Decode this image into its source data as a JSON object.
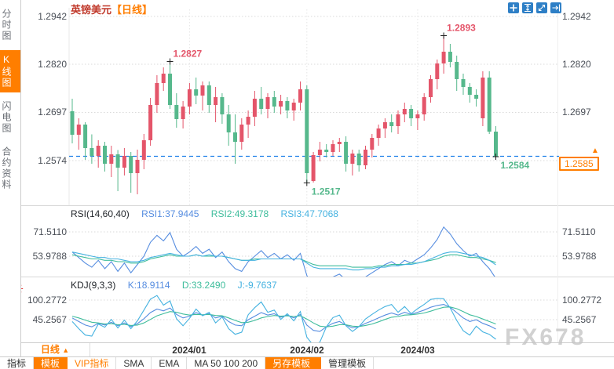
{
  "colors": {
    "accent": "#ff7e00",
    "up": "#e4556a",
    "down": "#56b88c",
    "line_blue": "#568de0",
    "line_green": "#3fbd9c",
    "line_cyan": "#45b2e0",
    "dashed_blue": "#1e80e8",
    "icon_blue": "#2e7fc6",
    "title_red": "#c0392b",
    "watermark": "#c6c6c6"
  },
  "sidebar": {
    "items": [
      {
        "label": "分时图",
        "active": false
      },
      {
        "label": "K线图",
        "active": true
      },
      {
        "label": "闪电图",
        "active": false
      },
      {
        "label": "合约资料",
        "active": false
      }
    ]
  },
  "header": {
    "symbol": "英镑美元",
    "period_tag": "【日线】",
    "icons": [
      "pan-icon",
      "fit-vertical-icon",
      "fit-chart-icon",
      "shift-right-icon"
    ]
  },
  "price_chart": {
    "axis_left": [
      "1.2942",
      "1.2820",
      "1.2697",
      "1.2574"
    ],
    "axis_right": [
      "1.2942",
      "1.2820",
      "1.2697"
    ],
    "current_price_label": "1.2585",
    "tag_arrow_glyph": "▲"
  },
  "rsi": {
    "title": "RSI(14,60,40)",
    "series_labels": [
      "RSI1:37.9445",
      "RSI2:49.3178",
      "RSI3:47.7068"
    ],
    "axis": [
      "71.5110",
      "53.9788"
    ]
  },
  "kdj": {
    "title": "KDJ(9,3,3)",
    "series_labels": [
      "K:18.9114",
      "D:33.2490",
      "J:-9.7637"
    ],
    "axis": [
      "100.2772",
      "45.2567"
    ]
  },
  "x_axis": {
    "period_label": "日线",
    "dropdown_arrow": "▲",
    "dates": [
      "2024/01",
      "2024/02",
      "2024/03"
    ]
  },
  "watermark": "FX678",
  "bottom_toolbar": {
    "items": [
      {
        "label": "指标",
        "style": "plain"
      },
      {
        "label": "模板",
        "style": "orange"
      },
      {
        "label": "VIP指标",
        "style": "orange-text"
      },
      {
        "label": "SMA",
        "style": "plain"
      },
      {
        "label": "EMA",
        "style": "plain"
      },
      {
        "label": "MA 50 100 200",
        "style": "plain"
      },
      {
        "label": "另存模板",
        "style": "orange"
      },
      {
        "label": "管理模板",
        "style": "bar"
      }
    ]
  },
  "chart_data": {
    "type": "candlestick",
    "symbol": "英镑美元",
    "period": "日线",
    "price_axis_ticks": [
      1.2942,
      1.282,
      1.2697,
      1.2574
    ],
    "current_price": 1.2585,
    "date_ticks": [
      {
        "label": "2024/01",
        "candle": 18
      },
      {
        "label": "2024/02",
        "candle": 36
      },
      {
        "label": "2024/03",
        "candle": 53
      }
    ],
    "annotations": [
      {
        "label": "1.2827",
        "candle": 15,
        "price": 1.2827,
        "placement": "above",
        "color_key": "up"
      },
      {
        "label": "1.2893",
        "candle": 57,
        "price": 1.2893,
        "placement": "above",
        "color_key": "up"
      },
      {
        "label": "1.2517",
        "candle": 36,
        "price": 1.2517,
        "placement": "below",
        "color_key": "down"
      },
      {
        "label": "1.2584",
        "candle": 65,
        "price": 1.2584,
        "placement": "below",
        "color_key": "down"
      }
    ],
    "candles": [
      [
        1.27,
        1.2732,
        1.2618,
        1.264
      ],
      [
        1.264,
        1.2682,
        1.2602,
        1.2666
      ],
      [
        1.2666,
        1.2672,
        1.2576,
        1.2606
      ],
      [
        1.2606,
        1.2641,
        1.2566,
        1.2586
      ],
      [
        1.2586,
        1.2626,
        1.2556,
        1.2612
      ],
      [
        1.2612,
        1.2622,
        1.2546,
        1.2566
      ],
      [
        1.2566,
        1.2612,
        1.2532,
        1.259
      ],
      [
        1.259,
        1.2601,
        1.2496,
        1.2556
      ],
      [
        1.2556,
        1.2606,
        1.2536,
        1.2586
      ],
      [
        1.2586,
        1.2596,
        1.2492,
        1.2542
      ],
      [
        1.2542,
        1.2602,
        1.2488,
        1.2576
      ],
      [
        1.2576,
        1.2642,
        1.2552,
        1.2626
      ],
      [
        1.2626,
        1.2734,
        1.2612,
        1.2716
      ],
      [
        1.2716,
        1.2792,
        1.2696,
        1.2772
      ],
      [
        1.2772,
        1.2812,
        1.2752,
        1.2796
      ],
      [
        1.2796,
        1.2827,
        1.2706,
        1.2716
      ],
      [
        1.2716,
        1.2746,
        1.2658,
        1.268
      ],
      [
        1.268,
        1.2726,
        1.2656,
        1.2712
      ],
      [
        1.2712,
        1.2772,
        1.2692,
        1.2756
      ],
      [
        1.2756,
        1.2786,
        1.2718,
        1.274
      ],
      [
        1.274,
        1.2776,
        1.2702,
        1.2766
      ],
      [
        1.2766,
        1.2776,
        1.2696,
        1.2716
      ],
      [
        1.2716,
        1.2762,
        1.2672,
        1.2736
      ],
      [
        1.2736,
        1.2746,
        1.2668,
        1.2692
      ],
      [
        1.2692,
        1.2716,
        1.2612,
        1.2646
      ],
      [
        1.2646,
        1.2692,
        1.2566,
        1.2622
      ],
      [
        1.2622,
        1.2682,
        1.2602,
        1.2666
      ],
      [
        1.2666,
        1.2702,
        1.2632,
        1.2686
      ],
      [
        1.2686,
        1.2752,
        1.2662,
        1.2732
      ],
      [
        1.2732,
        1.2762,
        1.2692,
        1.2706
      ],
      [
        1.2706,
        1.2746,
        1.2682,
        1.2736
      ],
      [
        1.2736,
        1.2752,
        1.2696,
        1.2712
      ],
      [
        1.2712,
        1.2742,
        1.2692,
        1.2726
      ],
      [
        1.2726,
        1.2736,
        1.2682,
        1.2702
      ],
      [
        1.2702,
        1.2732,
        1.2676,
        1.2722
      ],
      [
        1.2722,
        1.2776,
        1.2702,
        1.2756
      ],
      [
        1.2756,
        1.2766,
        1.2517,
        1.2542
      ],
      [
        1.2522,
        1.2596,
        1.2518,
        1.2588
      ],
      [
        1.2588,
        1.2622,
        1.2572,
        1.2602
      ],
      [
        1.2602,
        1.2616,
        1.2582,
        1.2596
      ],
      [
        1.2596,
        1.2626,
        1.2586,
        1.2616
      ],
      [
        1.2616,
        1.2632,
        1.2596,
        1.2622
      ],
      [
        1.2622,
        1.2636,
        1.2546,
        1.2566
      ],
      [
        1.2566,
        1.2602,
        1.2536,
        1.2592
      ],
      [
        1.2592,
        1.2602,
        1.2546,
        1.2562
      ],
      [
        1.2562,
        1.2612,
        1.2552,
        1.2602
      ],
      [
        1.2602,
        1.2642,
        1.2582,
        1.2632
      ],
      [
        1.2632,
        1.2666,
        1.2612,
        1.2656
      ],
      [
        1.2656,
        1.2682,
        1.2632,
        1.2672
      ],
      [
        1.2672,
        1.2692,
        1.2646,
        1.2662
      ],
      [
        1.2662,
        1.2702,
        1.2642,
        1.2692
      ],
      [
        1.2692,
        1.2722,
        1.2672,
        1.2706
      ],
      [
        1.2706,
        1.2716,
        1.2662,
        1.2682
      ],
      [
        1.2682,
        1.2702,
        1.2652,
        1.2692
      ],
      [
        1.2692,
        1.2746,
        1.2676,
        1.2736
      ],
      [
        1.2736,
        1.2792,
        1.2722,
        1.2782
      ],
      [
        1.2782,
        1.2832,
        1.2756,
        1.2822
      ],
      [
        1.2822,
        1.2893,
        1.2796,
        1.2852
      ],
      [
        1.2852,
        1.2872,
        1.2812,
        1.2826
      ],
      [
        1.2826,
        1.2842,
        1.2752,
        1.2782
      ],
      [
        1.2782,
        1.2796,
        1.2742,
        1.2762
      ],
      [
        1.2762,
        1.2772,
        1.2722,
        1.2742
      ],
      [
        1.2742,
        1.2756,
        1.2712,
        1.2732
      ],
      [
        1.2682,
        1.2802,
        1.2662,
        1.2786
      ],
      [
        1.2786,
        1.2802,
        1.2642,
        1.2648
      ],
      [
        1.2648,
        1.2662,
        1.2578,
        1.2584
      ]
    ],
    "indicators": {
      "rsi": {
        "axis_ticks": [
          71.511,
          53.9788
        ],
        "series": [
          {
            "name": "RSI1",
            "value": 37.9445,
            "color_key": "line_blue",
            "values": [
              57,
              53,
              49,
              46,
              51,
              45,
              50,
              43,
              49,
              42,
              48,
              54,
              64,
              69,
              65,
              71,
              59,
              54,
              57,
              61,
              56,
              59,
              53,
              57,
              50,
              45,
              43,
              50,
              54,
              58,
              53,
              56,
              52,
              55,
              51,
              56,
              40,
              32,
              30,
              35,
              39,
              41,
              37,
              34,
              36,
              39,
              42,
              45,
              48,
              50,
              47,
              51,
              49,
              52,
              55,
              60,
              66,
              75,
              70,
              63,
              58,
              54,
              56,
              50,
              45,
              37.9445
            ]
          },
          {
            "name": "RSI2",
            "value": 49.3178,
            "color_key": "line_green",
            "values": [
              55,
              54,
              53,
              52,
              52,
              51,
              51,
              50,
              50,
              49,
              49,
              50,
              52,
              53,
              54,
              55,
              54,
              54,
              54,
              55,
              54,
              54,
              54,
              54,
              53,
              52,
              51,
              51,
              52,
              52,
              52,
              52,
              52,
              52,
              52,
              52,
              50,
              48,
              47,
              47,
              47,
              47,
              47,
              46,
              46,
              46,
              46,
              47,
              47,
              48,
              48,
              48,
              49,
              49,
              50,
              51,
              52,
              54,
              55,
              55,
              54,
              53,
              53,
              52,
              51,
              49.3178
            ]
          },
          {
            "name": "RSI3",
            "value": 47.7068,
            "color_key": "line_cyan",
            "values": [
              57,
              56,
              55,
              54,
              53,
              53,
              52,
              52,
              51,
              50,
              50,
              51,
              53,
              54,
              55,
              56,
              55,
              54,
              54,
              55,
              54,
              55,
              54,
              54,
              53,
              52,
              51,
              51,
              51,
              52,
              52,
              52,
              52,
              52,
              52,
              52,
              49,
              46,
              45,
              45,
              45,
              45,
              45,
              44,
              44,
              45,
              45,
              46,
              46,
              47,
              47,
              48,
              48,
              49,
              50,
              52,
              54,
              56,
              57,
              57,
              56,
              55,
              54,
              53,
              51,
              47.7068
            ]
          }
        ]
      },
      "kdj": {
        "axis_ticks": [
          100.2772,
          45.2567
        ],
        "series": [
          {
            "name": "K",
            "value": 18.9114,
            "color_key": "line_blue",
            "values": [
              50,
              40,
              30,
              25,
              35,
              30,
              38,
              28,
              36,
              26,
              34,
              48,
              65,
              75,
              70,
              78,
              60,
              50,
              55,
              65,
              58,
              62,
              50,
              55,
              40,
              30,
              28,
              45,
              55,
              65,
              58,
              62,
              52,
              58,
              50,
              60,
              30,
              15,
              12,
              25,
              35,
              40,
              30,
              22,
              26,
              35,
              42,
              50,
              58,
              64,
              58,
              66,
              60,
              66,
              72,
              80,
              85,
              88,
              80,
              65,
              50,
              40,
              45,
              35,
              28,
              18.9114
            ]
          },
          {
            "name": "D",
            "value": 33.249,
            "color_key": "line_green",
            "values": [
              55,
              50,
              44,
              38,
              36,
              33,
              34,
              31,
              32,
              29,
              30,
              36,
              46,
              56,
              62,
              68,
              66,
              61,
              58,
              60,
              59,
              60,
              57,
              56,
              50,
              43,
              37,
              38,
              43,
              50,
              54,
              57,
              55,
              56,
              54,
              56,
              47,
              36,
              27,
              25,
              27,
              31,
              31,
              27,
              26,
              29,
              33,
              39,
              46,
              52,
              54,
              58,
              59,
              61,
              64,
              69,
              75,
              80,
              81,
              76,
              68,
              59,
              54,
              47,
              40,
              33.249
            ]
          },
          {
            "name": "J",
            "value": -9.7637,
            "color_key": "line_cyan",
            "values": [
              40,
              20,
              2,
              -1,
              33,
              24,
              46,
              22,
              44,
              20,
              42,
              72,
              103,
              113,
              86,
              98,
              48,
              28,
              49,
              75,
              56,
              66,
              36,
              53,
              20,
              4,
              10,
              59,
              79,
              95,
              66,
              72,
              46,
              62,
              42,
              68,
              -4,
              -27,
              -18,
              25,
              51,
              58,
              28,
              12,
              26,
              47,
              60,
              72,
              82,
              88,
              66,
              82,
              62,
              76,
              88,
              102,
              105,
              104,
              78,
              43,
              14,
              2,
              27,
              11,
              4,
              -9.7637
            ]
          }
        ]
      }
    }
  }
}
